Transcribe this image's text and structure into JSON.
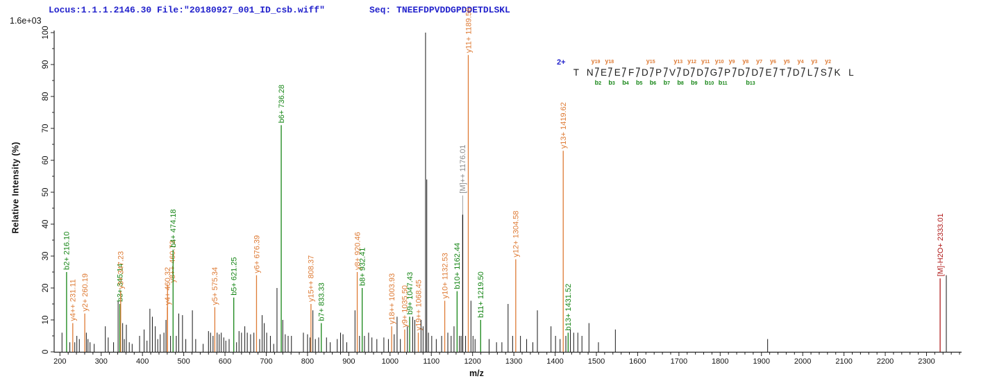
{
  "header": {
    "locus_file": "Locus:1.1.1.2146.30 File:\"20180927_001_ID_csb.wiff\"",
    "seq_label": "Seq:",
    "sequence": "TNEEFDPVDDGPDDETDLSKL"
  },
  "y_axis": {
    "scale_label": "1.6e+03",
    "title": "Relative  Intensity (%)",
    "min": 0,
    "max": 100,
    "major_step": 10,
    "minor_step": 5
  },
  "x_axis": {
    "title": "m/z",
    "min": 186,
    "max": 2385,
    "tick_start": 200,
    "tick_end": 2300,
    "major_step": 100,
    "minor_step": 20
  },
  "colors": {
    "b_ion": "#158515",
    "y_ion": "#DE7B35",
    "precursor": "#8a8a8a",
    "precursor_h2o": "#B01B1B",
    "peak": "#161616",
    "header_text": "#2222cc",
    "axis": "#222222"
  },
  "sequence_display": {
    "charge": "2+",
    "residues": [
      {
        "aa": "T"
      },
      {
        "aa": "N"
      },
      {
        "aa": "E",
        "y": "y19",
        "b": "b2"
      },
      {
        "aa": "E",
        "y": "y18",
        "b": "b3"
      },
      {
        "aa": "F",
        "b": "b4"
      },
      {
        "aa": "D",
        "b": "b5"
      },
      {
        "aa": "P",
        "y": "y15",
        "b": "b6"
      },
      {
        "aa": "V",
        "b": "b7"
      },
      {
        "aa": "D",
        "y": "y13",
        "b": "b8"
      },
      {
        "aa": "D",
        "y": "y12",
        "b": "b9"
      },
      {
        "aa": "G",
        "y": "y11",
        "b": "b10"
      },
      {
        "aa": "P",
        "y": "y10",
        "b": "b11"
      },
      {
        "aa": "D",
        "y": "y9"
      },
      {
        "aa": "D",
        "y": "y8",
        "b": "b13"
      },
      {
        "aa": "E",
        "y": "y7"
      },
      {
        "aa": "T",
        "y": "y6"
      },
      {
        "aa": "D",
        "y": "y5"
      },
      {
        "aa": "L",
        "y": "y4"
      },
      {
        "aa": "S",
        "y": "y3"
      },
      {
        "aa": "K",
        "y": "y2"
      },
      {
        "aa": "L"
      }
    ]
  },
  "chart_data": {
    "type": "bar",
    "variant": "centroided MS/MS spectrum (stick plot)",
    "title": "",
    "xlabel": "m/z",
    "ylabel": "Relative  Intensity (%)",
    "xlim": [
      186,
      2385
    ],
    "ylim": [
      0,
      100
    ],
    "grid": false,
    "peaks": [
      {
        "mz": 205,
        "pct": 6
      },
      {
        "mz": 216.1,
        "pct": 25,
        "ion": "b",
        "label": "b2+ 216.10"
      },
      {
        "mz": 224,
        "pct": 3
      },
      {
        "mz": 231.11,
        "pct": 9,
        "ion": "y",
        "label": "y4++ 231.11"
      },
      {
        "mz": 236,
        "pct": 3
      },
      {
        "mz": 241,
        "pct": 5
      },
      {
        "mz": 247,
        "pct": 4
      },
      {
        "mz": 260.19,
        "pct": 12,
        "ion": "y",
        "label": "y2+ 260.19"
      },
      {
        "mz": 264,
        "pct": 6
      },
      {
        "mz": 268,
        "pct": 4
      },
      {
        "mz": 273,
        "pct": 3
      },
      {
        "mz": 283,
        "pct": 2.5
      },
      {
        "mz": 310,
        "pct": 8
      },
      {
        "mz": 317,
        "pct": 4.5
      },
      {
        "mz": 330,
        "pct": 3
      },
      {
        "mz": 341,
        "pct": 16
      },
      {
        "mz": 345.14,
        "pct": 15,
        "ion": "b",
        "label": "b3+ 345.14"
      },
      {
        "mz": 347.23,
        "pct": 19,
        "ion": "y",
        "label": "y3+ 347.23"
      },
      {
        "mz": 352,
        "pct": 9
      },
      {
        "mz": 356,
        "pct": 4
      },
      {
        "mz": 361,
        "pct": 8.5
      },
      {
        "mz": 368,
        "pct": 3
      },
      {
        "mz": 375,
        "pct": 2.5
      },
      {
        "mz": 393,
        "pct": 5
      },
      {
        "mz": 404,
        "pct": 7
      },
      {
        "mz": 411,
        "pct": 3.5
      },
      {
        "mz": 418,
        "pct": 13.5
      },
      {
        "mz": 424,
        "pct": 11
      },
      {
        "mz": 431,
        "pct": 8
      },
      {
        "mz": 437,
        "pct": 4
      },
      {
        "mz": 443,
        "pct": 5.5
      },
      {
        "mz": 452,
        "pct": 6
      },
      {
        "mz": 457,
        "pct": 10
      },
      {
        "mz": 460.32,
        "pct": 14,
        "ion": "y",
        "label": "y4+ 460.32"
      },
      {
        "mz": 460.73,
        "pct": 21,
        "ion": "y",
        "label": "y8++ 460.73",
        "dx": 7
      },
      {
        "mz": 468,
        "pct": 5
      },
      {
        "mz": 474.18,
        "pct": 32,
        "ion": "b",
        "label": "b4+ 474.18"
      },
      {
        "mz": 482,
        "pct": 5
      },
      {
        "mz": 488,
        "pct": 12
      },
      {
        "mz": 497,
        "pct": 11.5
      },
      {
        "mz": 505,
        "pct": 4
      },
      {
        "mz": 521,
        "pct": 13
      },
      {
        "mz": 529,
        "pct": 4
      },
      {
        "mz": 547,
        "pct": 2.5
      },
      {
        "mz": 560,
        "pct": 6.5
      },
      {
        "mz": 565,
        "pct": 6
      },
      {
        "mz": 571,
        "pct": 5
      },
      {
        "mz": 575.34,
        "pct": 14,
        "ion": "y",
        "label": "y5+ 575.34"
      },
      {
        "mz": 581,
        "pct": 6
      },
      {
        "mz": 586,
        "pct": 5.5
      },
      {
        "mz": 591,
        "pct": 6
      },
      {
        "mz": 597,
        "pct": 4.5
      },
      {
        "mz": 602,
        "pct": 3.5
      },
      {
        "mz": 610,
        "pct": 4
      },
      {
        "mz": 621.25,
        "pct": 17,
        "ion": "b",
        "label": "b5+ 621.25"
      },
      {
        "mz": 628,
        "pct": 3
      },
      {
        "mz": 634,
        "pct": 6.5
      },
      {
        "mz": 640,
        "pct": 6
      },
      {
        "mz": 648,
        "pct": 8
      },
      {
        "mz": 654,
        "pct": 6
      },
      {
        "mz": 662,
        "pct": 5.5
      },
      {
        "mz": 670,
        "pct": 6
      },
      {
        "mz": 676.39,
        "pct": 24,
        "ion": "y",
        "label": "y6+ 676.39"
      },
      {
        "mz": 684,
        "pct": 4
      },
      {
        "mz": 690,
        "pct": 11.5
      },
      {
        "mz": 695,
        "pct": 9
      },
      {
        "mz": 701,
        "pct": 6
      },
      {
        "mz": 710,
        "pct": 5
      },
      {
        "mz": 718,
        "pct": 2.5
      },
      {
        "mz": 726,
        "pct": 20
      },
      {
        "mz": 736.28,
        "pct": 71,
        "ion": "b",
        "label": "b6+ 736.28"
      },
      {
        "mz": 740,
        "pct": 10
      },
      {
        "mz": 746,
        "pct": 5.5
      },
      {
        "mz": 753,
        "pct": 5
      },
      {
        "mz": 761,
        "pct": 5
      },
      {
        "mz": 790,
        "pct": 6
      },
      {
        "mz": 800,
        "pct": 5.5
      },
      {
        "mz": 806,
        "pct": 4.5
      },
      {
        "mz": 808.37,
        "pct": 15,
        "ion": "y",
        "label": "y15++ 808.37"
      },
      {
        "mz": 813,
        "pct": 13
      },
      {
        "mz": 819,
        "pct": 4
      },
      {
        "mz": 827,
        "pct": 4.5
      },
      {
        "mz": 833.33,
        "pct": 9,
        "ion": "b",
        "label": "b7+ 833.33"
      },
      {
        "mz": 846,
        "pct": 4.5
      },
      {
        "mz": 855,
        "pct": 3
      },
      {
        "mz": 872,
        "pct": 4
      },
      {
        "mz": 880,
        "pct": 6
      },
      {
        "mz": 886,
        "pct": 5.5
      },
      {
        "mz": 895,
        "pct": 3
      },
      {
        "mz": 915,
        "pct": 13
      },
      {
        "mz": 920.46,
        "pct": 25,
        "ion": "y",
        "label": "y8+ 920.46"
      },
      {
        "mz": 926,
        "pct": 5
      },
      {
        "mz": 932.41,
        "pct": 20,
        "ion": "b",
        "label": "b8+ 932.41"
      },
      {
        "mz": 938,
        "pct": 5
      },
      {
        "mz": 948,
        "pct": 6
      },
      {
        "mz": 956,
        "pct": 4.5
      },
      {
        "mz": 968,
        "pct": 4
      },
      {
        "mz": 985,
        "pct": 4.5
      },
      {
        "mz": 996,
        "pct": 4
      },
      {
        "mz": 1003.93,
        "pct": 8,
        "ion": "y",
        "label": "y18++ 1003.93"
      },
      {
        "mz": 1010,
        "pct": 5.5
      },
      {
        "mz": 1017,
        "pct": 11
      },
      {
        "mz": 1025,
        "pct": 4
      },
      {
        "mz": 1035.5,
        "pct": 7,
        "ion": "y",
        "label": "y9+ 1035.50"
      },
      {
        "mz": 1042,
        "pct": 8
      },
      {
        "mz": 1047.43,
        "pct": 11,
        "ion": "b",
        "label": "b9+ 1047.43"
      },
      {
        "mz": 1055,
        "pct": 11
      },
      {
        "mz": 1060,
        "pct": 10
      },
      {
        "mz": 1068.45,
        "pct": 6,
        "ion": "y",
        "label": "y19++ 1068.45"
      },
      {
        "mz": 1075,
        "pct": 10
      },
      {
        "mz": 1080,
        "pct": 8
      },
      {
        "mz": 1086,
        "pct": 100
      },
      {
        "mz": 1089,
        "pct": 54
      },
      {
        "mz": 1093,
        "pct": 6
      },
      {
        "mz": 1101,
        "pct": 5
      },
      {
        "mz": 1112,
        "pct": 4
      },
      {
        "mz": 1125,
        "pct": 5
      },
      {
        "mz": 1132.53,
        "pct": 16,
        "ion": "y",
        "label": "y10+ 1132.53"
      },
      {
        "mz": 1140,
        "pct": 6
      },
      {
        "mz": 1148,
        "pct": 5
      },
      {
        "mz": 1155,
        "pct": 8
      },
      {
        "mz": 1162.44,
        "pct": 19,
        "ion": "b",
        "label": "b10+ 1162.44"
      },
      {
        "mz": 1168,
        "pct": 5
      },
      {
        "mz": 1172,
        "pct": 5
      },
      {
        "mz": 1176.01,
        "pct": 43,
        "ion": "M",
        "label": "[M]++ 1176.01",
        "leader": 6
      },
      {
        "mz": 1183,
        "pct": 5
      },
      {
        "mz": 1189.56,
        "pct": 93,
        "ion": "y",
        "label": "y11+ 1189.56"
      },
      {
        "mz": 1196,
        "pct": 16
      },
      {
        "mz": 1201,
        "pct": 5
      },
      {
        "mz": 1206,
        "pct": 4
      },
      {
        "mz": 1219.5,
        "pct": 10,
        "ion": "b",
        "label": "b11+ 1219.50"
      },
      {
        "mz": 1240,
        "pct": 4
      },
      {
        "mz": 1258,
        "pct": 3
      },
      {
        "mz": 1271,
        "pct": 3
      },
      {
        "mz": 1286,
        "pct": 15
      },
      {
        "mz": 1297,
        "pct": 5
      },
      {
        "mz": 1304.58,
        "pct": 29,
        "ion": "y",
        "label": "y12+ 1304.58"
      },
      {
        "mz": 1316,
        "pct": 5
      },
      {
        "mz": 1331,
        "pct": 4
      },
      {
        "mz": 1346,
        "pct": 3
      },
      {
        "mz": 1357,
        "pct": 13
      },
      {
        "mz": 1390,
        "pct": 8
      },
      {
        "mz": 1401,
        "pct": 5
      },
      {
        "mz": 1412,
        "pct": 4
      },
      {
        "mz": 1419.62,
        "pct": 63,
        "ion": "y",
        "label": "y13+ 1419.62"
      },
      {
        "mz": 1426,
        "pct": 5
      },
      {
        "mz": 1431.52,
        "pct": 6,
        "ion": "b",
        "label": "b13+ 1431.52"
      },
      {
        "mz": 1437,
        "pct": 7
      },
      {
        "mz": 1445,
        "pct": 6
      },
      {
        "mz": 1455,
        "pct": 6
      },
      {
        "mz": 1465,
        "pct": 5
      },
      {
        "mz": 1482,
        "pct": 9
      },
      {
        "mz": 1505,
        "pct": 3
      },
      {
        "mz": 1546,
        "pct": 7
      },
      {
        "mz": 1915,
        "pct": 4
      },
      {
        "mz": 2333.01,
        "pct": 23,
        "ion": "MH2O",
        "label": "[M]-H2O+ 2333.01"
      },
      {
        "mz": 2348,
        "pct": 24
      }
    ]
  }
}
